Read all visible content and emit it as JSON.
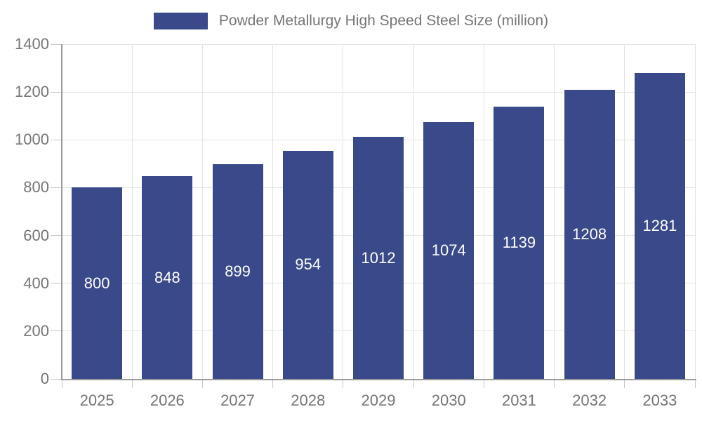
{
  "legend": {
    "label": "Powder Metallurgy High Speed Steel Size (million)"
  },
  "chart_data": {
    "type": "bar",
    "title": "Powder Metallurgy High Speed Steel Size (million)",
    "categories": [
      "2025",
      "2026",
      "2027",
      "2028",
      "2029",
      "2030",
      "2031",
      "2032",
      "2033"
    ],
    "values": [
      800,
      848,
      899,
      954,
      1012,
      1074,
      1139,
      1208,
      1281
    ],
    "xlabel": "",
    "ylabel": "",
    "ylim": [
      0,
      1400
    ],
    "ytick_step": 200,
    "grid": true,
    "legend_position": "top",
    "bar_color": "#39498A",
    "bar_label_color": "#ffffff",
    "axis_text_color": "#757575",
    "gridline_color": "#e3e3e3",
    "axis_line_color": "#9b9b9b",
    "tick_color": "#c6c6c6"
  }
}
